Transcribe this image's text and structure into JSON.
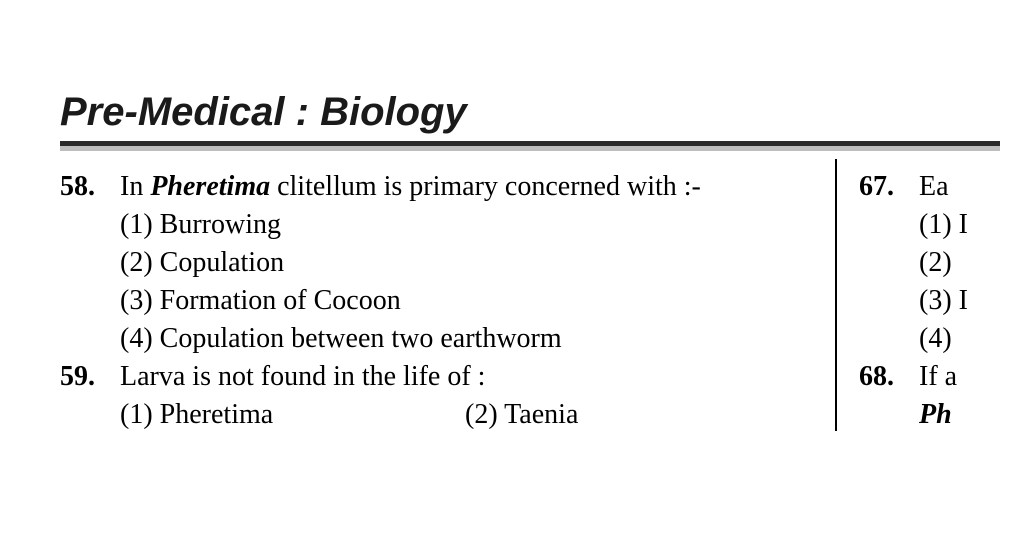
{
  "header": {
    "title": "Pre-Medical : Biology"
  },
  "left": {
    "q58": {
      "number": "58.",
      "prefix": "In ",
      "italic": "Pheretima",
      "suffix": " clitellum is primary concerned with :-",
      "options": {
        "1": "(1) Burrowing",
        "2": "(2) Copulation",
        "3": "(3) Formation of Cocoon",
        "4": "(4) Copulation between two earthworm"
      }
    },
    "q59": {
      "number": "59.",
      "text": "Larva is not found in the life of :",
      "options": {
        "1_num": "(1) ",
        "1_italic": "Pheretima",
        "2_num": "(2) ",
        "2_italic": "Taenia"
      }
    }
  },
  "right": {
    "q67": {
      "number": "67.",
      "text": "Ea",
      "options": {
        "1": "(1) I",
        "2": "(2)",
        "3": "(3) I",
        "4": "(4)"
      }
    },
    "q68": {
      "number": "68.",
      "text": "If a",
      "ph": "Ph"
    }
  }
}
